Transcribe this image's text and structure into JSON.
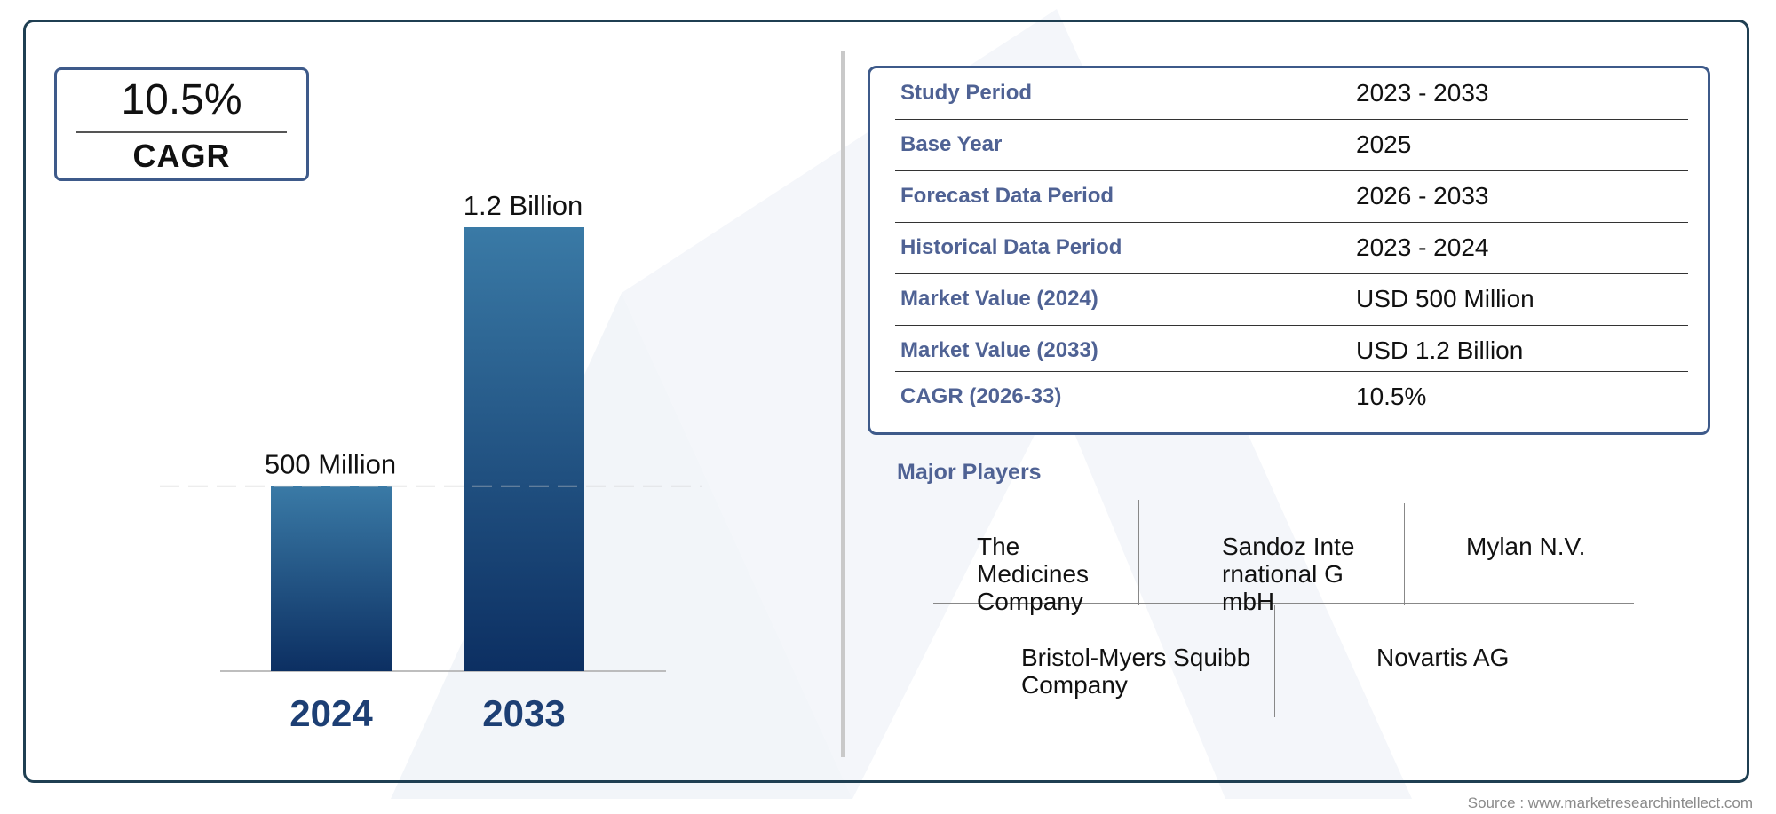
{
  "cagr_box": {
    "value": "10.5%",
    "label": "CAGR"
  },
  "chart_data": {
    "type": "bar",
    "categories": [
      "2024",
      "2033"
    ],
    "values": [
      0.5,
      1.2
    ],
    "unit": "USD Billion",
    "data_labels": [
      "500 Million",
      "1.2 Billion"
    ],
    "colors": {
      "bar_top": "#3a7aa6",
      "bar_bottom": "#0c2f62",
      "category_label": "#1d3f74"
    },
    "reference_line": {
      "value": 0.5,
      "style": "dashed"
    },
    "grid": false
  },
  "info_table": [
    {
      "label": "Study Period",
      "value": "2023 - 2033"
    },
    {
      "label": "Base Year",
      "value": "2025"
    },
    {
      "label": "Forecast Data Period",
      "value": "2026 - 2033"
    },
    {
      "label": "Historical Data Period",
      "value": "2023 - 2024"
    },
    {
      "label": "Market Value (2024)",
      "value": "USD 500 Million"
    },
    {
      "label": "Market Value (2033)",
      "value": "USD 1.2 Billion"
    },
    {
      "label": "CAGR (2026-33)",
      "value": "10.5%"
    }
  ],
  "major_players": {
    "title": "Major Players",
    "players": [
      "The Medicines Company",
      "Sandoz International GmbH",
      "Mylan N.V.",
      "Bristol-Myers Squibb Company",
      "Novartis AG"
    ]
  },
  "source": "Source : www.marketresearchintellect.com",
  "colors": {
    "frame": "#1f3f52",
    "accent": "#3e5a8a",
    "label_text": "#4f6294"
  }
}
